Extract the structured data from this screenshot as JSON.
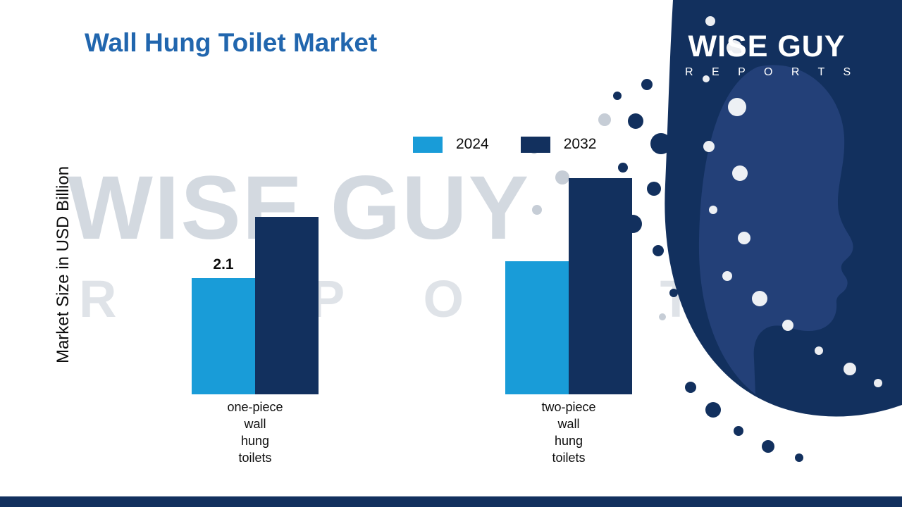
{
  "page": {
    "title": "Wall Hung Toilet Market"
  },
  "logo": {
    "line1": "WISE GUY",
    "line2": "R E P O R T S"
  },
  "watermark": {
    "line1": "WISE GUY",
    "line2": "R E P O R T"
  },
  "chart_data": {
    "type": "bar",
    "title": "Wall Hung Toilet Market",
    "xlabel": "",
    "ylabel": "Market Size in USD Billion",
    "categories": [
      "one-piece wall hung toilets",
      "two-piece wall hung toilets"
    ],
    "category_lines": [
      [
        "one-piece",
        "wall",
        "hung",
        "toilets"
      ],
      [
        "two-piece",
        "wall",
        "hung",
        "toilets"
      ]
    ],
    "series": [
      {
        "name": "2024",
        "color": "#199cd8",
        "values": [
          2.1,
          2.4
        ]
      },
      {
        "name": "2032",
        "color": "#12305e",
        "values": [
          3.2,
          3.9
        ]
      }
    ],
    "shown_value_labels": [
      {
        "series": "2024",
        "category": "one-piece wall hung toilets",
        "label": "2.1"
      }
    ],
    "ylim": [
      0,
      4.5
    ],
    "grid": false,
    "legend_position": "top-center",
    "value_unit": "USD Billion"
  },
  "colors": {
    "title_blue": "#2166ae",
    "bar_2024": "#199cd8",
    "bar_2032": "#12305e",
    "navy_background": "#12305e",
    "watermark_gray": "#d3d9e0",
    "bottom_bar_navy": "#12305e"
  }
}
